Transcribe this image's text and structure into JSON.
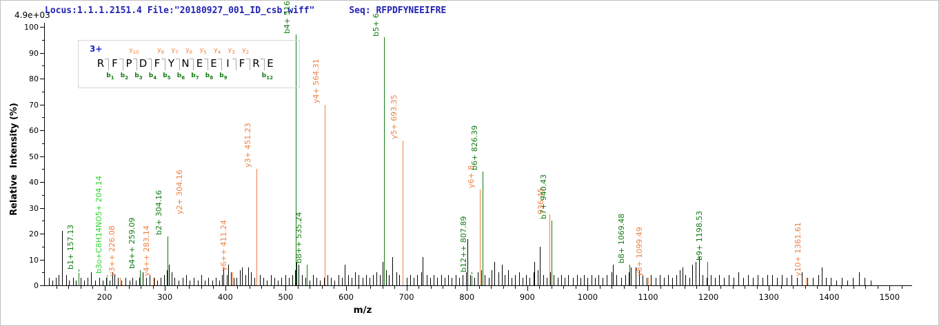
{
  "header": {
    "file_info": "Locus:1.1.1.2151.4 File:\"20180927_001_ID_csb.wiff\"",
    "seq_info": "Seq: RFPDFYNEEIFRE",
    "max_intensity": "4.9e+03"
  },
  "peptide": {
    "charge": "3+",
    "sequence": "RFPDFYNEEIFRE",
    "residues": [
      "R",
      "F",
      "P",
      "D",
      "F",
      "Y",
      "N",
      "E",
      "E",
      "I",
      "F",
      "R",
      "E"
    ],
    "y_ion_marks": [
      {
        "num": "10",
        "after": 3
      },
      {
        "num": "8",
        "after": 5
      },
      {
        "num": "7",
        "after": 6
      },
      {
        "num": "6",
        "after": 7
      },
      {
        "num": "5",
        "after": 8
      },
      {
        "num": "4",
        "after": 9
      },
      {
        "num": "3",
        "after": 10
      },
      {
        "num": "2",
        "after": 11
      }
    ],
    "b_ion_marks": [
      {
        "num": "1",
        "after": 1
      },
      {
        "num": "2",
        "after": 2
      },
      {
        "num": "3",
        "after": 3
      },
      {
        "num": "4",
        "after": 4
      },
      {
        "num": "5",
        "after": 5
      },
      {
        "num": "6",
        "after": 6
      },
      {
        "num": "7",
        "after": 7
      },
      {
        "num": "8",
        "after": 8
      },
      {
        "num": "9",
        "after": 9
      },
      {
        "num": "12",
        "after": 12
      }
    ]
  },
  "chart_data": {
    "type": "bar",
    "subtype": "ms2-fragmentation-spectrum",
    "xlabel": "m/z",
    "ylabel": "Relative  Intensity (%)",
    "intensity_max_label": "4.9e+03",
    "xlim": [
      100,
      1530
    ],
    "ylim": [
      0,
      100
    ],
    "x_major_ticks": [
      200,
      300,
      400,
      500,
      600,
      700,
      800,
      900,
      1000,
      1100,
      1200,
      1300,
      1400,
      1500
    ],
    "x_minor_step": 20,
    "y_major_ticks": [
      0,
      10,
      20,
      30,
      40,
      50,
      60,
      70,
      80,
      90,
      100
    ],
    "y_minor_step": 5,
    "annotated_peaks": [
      {
        "label": "b1+ 157.13",
        "mz": 157.13,
        "intensity": 4,
        "series": "b",
        "dashed": true,
        "gap": 8
      },
      {
        "label": "b3o+C8H14NO5+ 204.14",
        "mz": 204.14,
        "intensity": 4,
        "series": "neutral_loss"
      },
      {
        "label": "y3++ 226.08",
        "mz": 226.08,
        "intensity": 3,
        "series": "y"
      },
      {
        "label": "b4++ 259.09",
        "mz": 259.09,
        "intensity": 6,
        "series": "b"
      },
      {
        "label": "y4++ 283.14",
        "mz": 283.14,
        "intensity": 3,
        "series": "y"
      },
      {
        "label": "b2+ 304.16",
        "mz": 304.16,
        "intensity": 19,
        "series": "b"
      },
      {
        "label": "y2+ 304.16",
        "mz": 304.16,
        "intensity": 19,
        "series": "y",
        "no_line": true,
        "dx": 30,
        "gap": 32
      },
      {
        "label": "y6++ 411.24",
        "mz": 411.24,
        "intensity": 5,
        "series": "y"
      },
      {
        "label": "y3+ 451.23",
        "mz": 451.23,
        "intensity": 45,
        "series": "y"
      },
      {
        "label": "b4+ 516.2",
        "mz": 516.25,
        "intensity": 97,
        "series": "b",
        "gap": 1
      },
      {
        "label": "b8++ 535.24",
        "mz": 535.24,
        "intensity": 8,
        "series": "b"
      },
      {
        "label": "y4+ 564.31",
        "mz": 564.31,
        "intensity": 70,
        "series": "y"
      },
      {
        "label": "b5+ 6",
        "mz": 663.3,
        "intensity": 96,
        "series": "b",
        "gap": 1
      },
      {
        "label": "y5+ 693.35",
        "mz": 693.35,
        "intensity": 56,
        "series": "y"
      },
      {
        "label": "b12++ 807.89",
        "mz": 807.89,
        "intensity": 3,
        "series": "b",
        "dashed": true,
        "gap": 8
      },
      {
        "label": "y6+ 8",
        "mz": 821.4,
        "intensity": 37,
        "series": "y"
      },
      {
        "label": "b6+ 826.39",
        "mz": 826.39,
        "intensity": 44,
        "series": "b"
      },
      {
        "label": "936.45",
        "mz": 936.45,
        "intensity": 26,
        "series": "y",
        "dashed": true,
        "gap": 6
      },
      {
        "label": "b7+ 940.43",
        "mz": 940.43,
        "intensity": 25,
        "series": "b"
      },
      {
        "label": "b8+ 1069.48",
        "mz": 1069.48,
        "intensity": 8,
        "series": "b"
      },
      {
        "label": "y8+ 1099.49",
        "mz": 1099.49,
        "intensity": 3,
        "series": "y"
      },
      {
        "label": "b9+ 1198.53",
        "mz": 1198.53,
        "intensity": 9,
        "series": "b"
      },
      {
        "label": "y10+ 1361.61",
        "mz": 1361.61,
        "intensity": 3,
        "series": "y"
      }
    ],
    "noise_peaks": [
      [
        108,
        3
      ],
      [
        114,
        2
      ],
      [
        119,
        3
      ],
      [
        124,
        4
      ],
      [
        130,
        21
      ],
      [
        136,
        4
      ],
      [
        141,
        2
      ],
      [
        148,
        3
      ],
      [
        153,
        2
      ],
      [
        160,
        3
      ],
      [
        166,
        2
      ],
      [
        172,
        3
      ],
      [
        178,
        5
      ],
      [
        184,
        2
      ],
      [
        191,
        3
      ],
      [
        197,
        2
      ],
      [
        203,
        3
      ],
      [
        209,
        2
      ],
      [
        213,
        5
      ],
      [
        217,
        4
      ],
      [
        222,
        3
      ],
      [
        228,
        2
      ],
      [
        235,
        3
      ],
      [
        241,
        2
      ],
      [
        246,
        3
      ],
      [
        252,
        2
      ],
      [
        258,
        3
      ],
      [
        263,
        5
      ],
      [
        269,
        3
      ],
      [
        275,
        4
      ],
      [
        281,
        3
      ],
      [
        287,
        2
      ],
      [
        293,
        3
      ],
      [
        299,
        4
      ],
      [
        303,
        6
      ],
      [
        307,
        8
      ],
      [
        311,
        5
      ],
      [
        316,
        3
      ],
      [
        323,
        2
      ],
      [
        329,
        3
      ],
      [
        335,
        4
      ],
      [
        341,
        2
      ],
      [
        348,
        3
      ],
      [
        354,
        2
      ],
      [
        360,
        4
      ],
      [
        366,
        2
      ],
      [
        372,
        3
      ],
      [
        378,
        2
      ],
      [
        384,
        3
      ],
      [
        390,
        2
      ],
      [
        394,
        4
      ],
      [
        397,
        7
      ],
      [
        402,
        4
      ],
      [
        405,
        8
      ],
      [
        409,
        5
      ],
      [
        414,
        3
      ],
      [
        419,
        3
      ],
      [
        424,
        6
      ],
      [
        428,
        7
      ],
      [
        433,
        4
      ],
      [
        438,
        7
      ],
      [
        443,
        5
      ],
      [
        448,
        3
      ],
      [
        452,
        8
      ],
      [
        457,
        4
      ],
      [
        463,
        3
      ],
      [
        469,
        2
      ],
      [
        475,
        4
      ],
      [
        481,
        3
      ],
      [
        487,
        2
      ],
      [
        493,
        3
      ],
      [
        499,
        4
      ],
      [
        505,
        3
      ],
      [
        511,
        4
      ],
      [
        515,
        6
      ],
      [
        518,
        9
      ],
      [
        521,
        8
      ],
      [
        527,
        4
      ],
      [
        533,
        3
      ],
      [
        539,
        2
      ],
      [
        545,
        4
      ],
      [
        551,
        3
      ],
      [
        557,
        2
      ],
      [
        563,
        3
      ],
      [
        569,
        4
      ],
      [
        575,
        3
      ],
      [
        581,
        2
      ],
      [
        587,
        4
      ],
      [
        593,
        3
      ],
      [
        598,
        8
      ],
      [
        603,
        4
      ],
      [
        609,
        3
      ],
      [
        615,
        5
      ],
      [
        621,
        4
      ],
      [
        627,
        3
      ],
      [
        633,
        4
      ],
      [
        639,
        3
      ],
      [
        645,
        4
      ],
      [
        650,
        5
      ],
      [
        656,
        4
      ],
      [
        661,
        9
      ],
      [
        666,
        6
      ],
      [
        671,
        4
      ],
      [
        677,
        11
      ],
      [
        683,
        5
      ],
      [
        688,
        4
      ],
      [
        694,
        5
      ],
      [
        700,
        3
      ],
      [
        706,
        4
      ],
      [
        712,
        3
      ],
      [
        718,
        4
      ],
      [
        724,
        5
      ],
      [
        727,
        11
      ],
      [
        733,
        4
      ],
      [
        739,
        3
      ],
      [
        745,
        4
      ],
      [
        751,
        3
      ],
      [
        757,
        4
      ],
      [
        763,
        3
      ],
      [
        769,
        4
      ],
      [
        775,
        3
      ],
      [
        781,
        4
      ],
      [
        787,
        3
      ],
      [
        793,
        4
      ],
      [
        799,
        5
      ],
      [
        801,
        18
      ],
      [
        806,
        4
      ],
      [
        812,
        3
      ],
      [
        818,
        5
      ],
      [
        824,
        6
      ],
      [
        830,
        4
      ],
      [
        836,
        3
      ],
      [
        841,
        6
      ],
      [
        846,
        9
      ],
      [
        852,
        5
      ],
      [
        858,
        8
      ],
      [
        863,
        4
      ],
      [
        868,
        6
      ],
      [
        874,
        3
      ],
      [
        880,
        4
      ],
      [
        886,
        5
      ],
      [
        892,
        3
      ],
      [
        898,
        4
      ],
      [
        904,
        3
      ],
      [
        910,
        5
      ],
      [
        912,
        9
      ],
      [
        917,
        6
      ],
      [
        921,
        15
      ],
      [
        926,
        4
      ],
      [
        932,
        3
      ],
      [
        938,
        5
      ],
      [
        944,
        4
      ],
      [
        950,
        3
      ],
      [
        956,
        4
      ],
      [
        962,
        3
      ],
      [
        968,
        4
      ],
      [
        975,
        3
      ],
      [
        982,
        4
      ],
      [
        988,
        3
      ],
      [
        994,
        4
      ],
      [
        1000,
        3
      ],
      [
        1006,
        4
      ],
      [
        1012,
        3
      ],
      [
        1018,
        4
      ],
      [
        1025,
        3
      ],
      [
        1032,
        4
      ],
      [
        1039,
        5
      ],
      [
        1042,
        8
      ],
      [
        1048,
        4
      ],
      [
        1055,
        3
      ],
      [
        1062,
        4
      ],
      [
        1068,
        5
      ],
      [
        1072,
        7
      ],
      [
        1079,
        7
      ],
      [
        1085,
        6
      ],
      [
        1091,
        4
      ],
      [
        1098,
        3
      ],
      [
        1105,
        4
      ],
      [
        1112,
        3
      ],
      [
        1119,
        4
      ],
      [
        1126,
        3
      ],
      [
        1133,
        4
      ],
      [
        1140,
        3
      ],
      [
        1147,
        4
      ],
      [
        1153,
        6
      ],
      [
        1157,
        7
      ],
      [
        1162,
        4
      ],
      [
        1168,
        3
      ],
      [
        1173,
        8
      ],
      [
        1179,
        9
      ],
      [
        1184,
        11
      ],
      [
        1190,
        4
      ],
      [
        1197,
        3
      ],
      [
        1204,
        4
      ],
      [
        1211,
        3
      ],
      [
        1218,
        4
      ],
      [
        1226,
        3
      ],
      [
        1234,
        4
      ],
      [
        1242,
        3
      ],
      [
        1250,
        5
      ],
      [
        1258,
        3
      ],
      [
        1266,
        4
      ],
      [
        1274,
        3
      ],
      [
        1282,
        4
      ],
      [
        1290,
        3
      ],
      [
        1298,
        4
      ],
      [
        1306,
        4
      ],
      [
        1314,
        3
      ],
      [
        1322,
        4
      ],
      [
        1330,
        3
      ],
      [
        1338,
        4
      ],
      [
        1347,
        3
      ],
      [
        1355,
        5
      ],
      [
        1364,
        3
      ],
      [
        1373,
        3
      ],
      [
        1382,
        4
      ],
      [
        1388,
        7
      ],
      [
        1395,
        3
      ],
      [
        1403,
        3
      ],
      [
        1412,
        2
      ],
      [
        1421,
        3
      ],
      [
        1430,
        2
      ],
      [
        1439,
        3
      ],
      [
        1449,
        5
      ],
      [
        1459,
        3
      ],
      [
        1469,
        2
      ]
    ]
  },
  "colors": {
    "b_ion": "#117a11",
    "y_ion": "#ee8040",
    "neutral_loss": "#2fd42f",
    "header_text": "#2121b3",
    "charge_label": "#2222cc",
    "peak": "#000000"
  }
}
